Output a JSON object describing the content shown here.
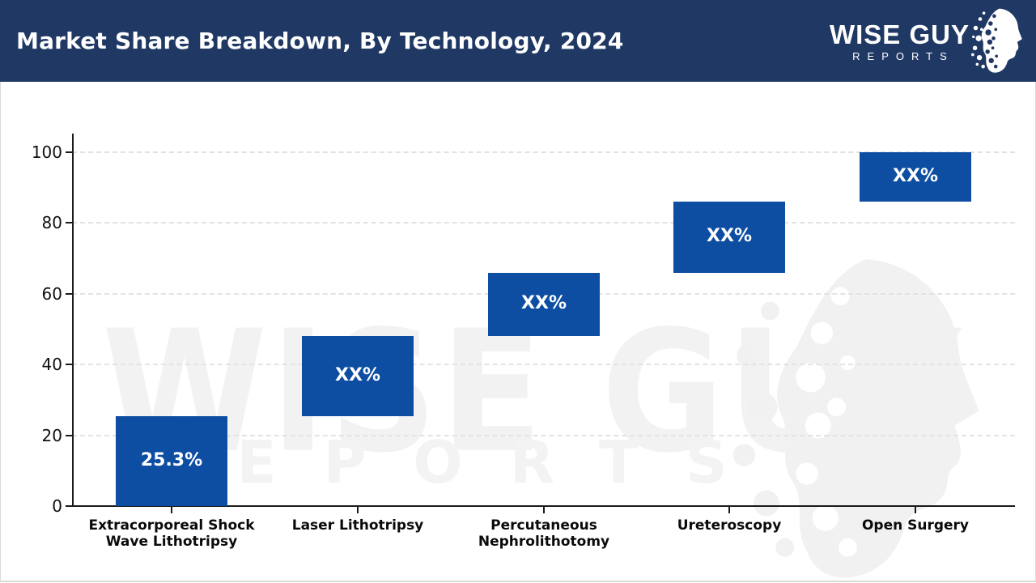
{
  "header": {
    "title": "Market Share Breakdown, By Technology, 2024",
    "background": "#1f3864",
    "logo": {
      "line1": "WISE GUY",
      "line2": "REPORTS"
    }
  },
  "watermark": {
    "line1": "WISE GUY",
    "line2": "REPORTS"
  },
  "chart_data": {
    "type": "bar",
    "subtype": "waterfall",
    "title": "Market Share Breakdown, By Technology, 2024",
    "categories": [
      "Extracorporeal Shock Wave Lithotripsy",
      "Laser Lithotripsy",
      "Percutaneous Nephrolithotomy",
      "Ureteroscopy",
      "Open Surgery"
    ],
    "bars": [
      {
        "start": 0,
        "end": 25.3,
        "label": "25.3%"
      },
      {
        "start": 25.3,
        "end": 48,
        "label": "XX%"
      },
      {
        "start": 48,
        "end": 66,
        "label": "XX%"
      },
      {
        "start": 66,
        "end": 86,
        "label": "XX%"
      },
      {
        "start": 86,
        "end": 100,
        "label": "XX%"
      }
    ],
    "xlabel": "",
    "ylabel": "",
    "ylim": [
      0,
      100
    ],
    "yticks": [
      0,
      20,
      40,
      60,
      80,
      100
    ],
    "grid": "horizontal-dashed",
    "legend": "none",
    "bar_color": "#0d4da2",
    "bar_label_color": "#ffffff"
  }
}
